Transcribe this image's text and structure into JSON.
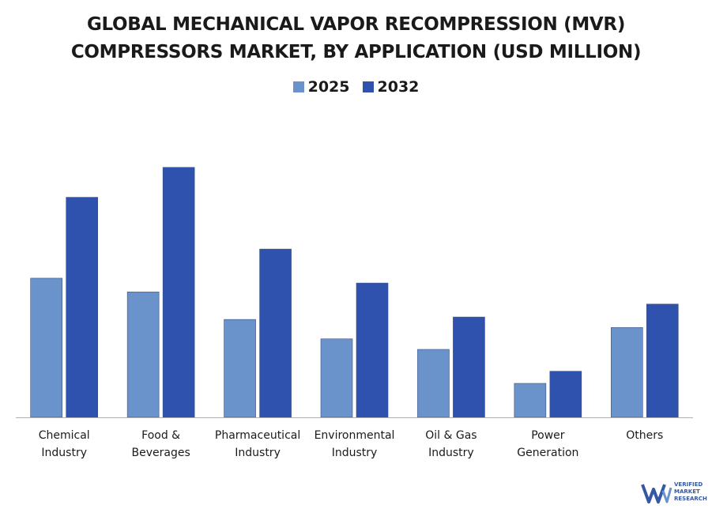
{
  "chart_data": {
    "type": "bar",
    "title_lines": [
      "GLOBAL MECHANICAL VAPOR RECOMPRESSION (MVR)",
      "COMPRESSORS MARKET, BY APPLICATION (USD MILLION)"
    ],
    "categories": [
      [
        "Chemical",
        "Industry"
      ],
      [
        "Food &",
        "Beverages"
      ],
      [
        "Pharmaceutical",
        "Industry"
      ],
      [
        "Environmental",
        "Industry"
      ],
      [
        "Oil & Gas",
        "Industry"
      ],
      [
        "Power",
        "Generation"
      ],
      [
        "Others"
      ]
    ],
    "series": [
      {
        "name": "2025",
        "color": "#6a93cb",
        "values": [
          172,
          155,
          121,
          97,
          84,
          42,
          111
        ]
      },
      {
        "name": "2032",
        "color": "#2e52ad",
        "values": [
          272,
          309,
          208,
          166,
          124,
          57,
          140
        ]
      }
    ],
    "ylim": [
      0,
      340
    ],
    "grid": false,
    "legend_position": "top-center"
  },
  "logo": {
    "mark": "VMR",
    "text": "VERIFIED\nMARKET\nRESEARCH"
  }
}
